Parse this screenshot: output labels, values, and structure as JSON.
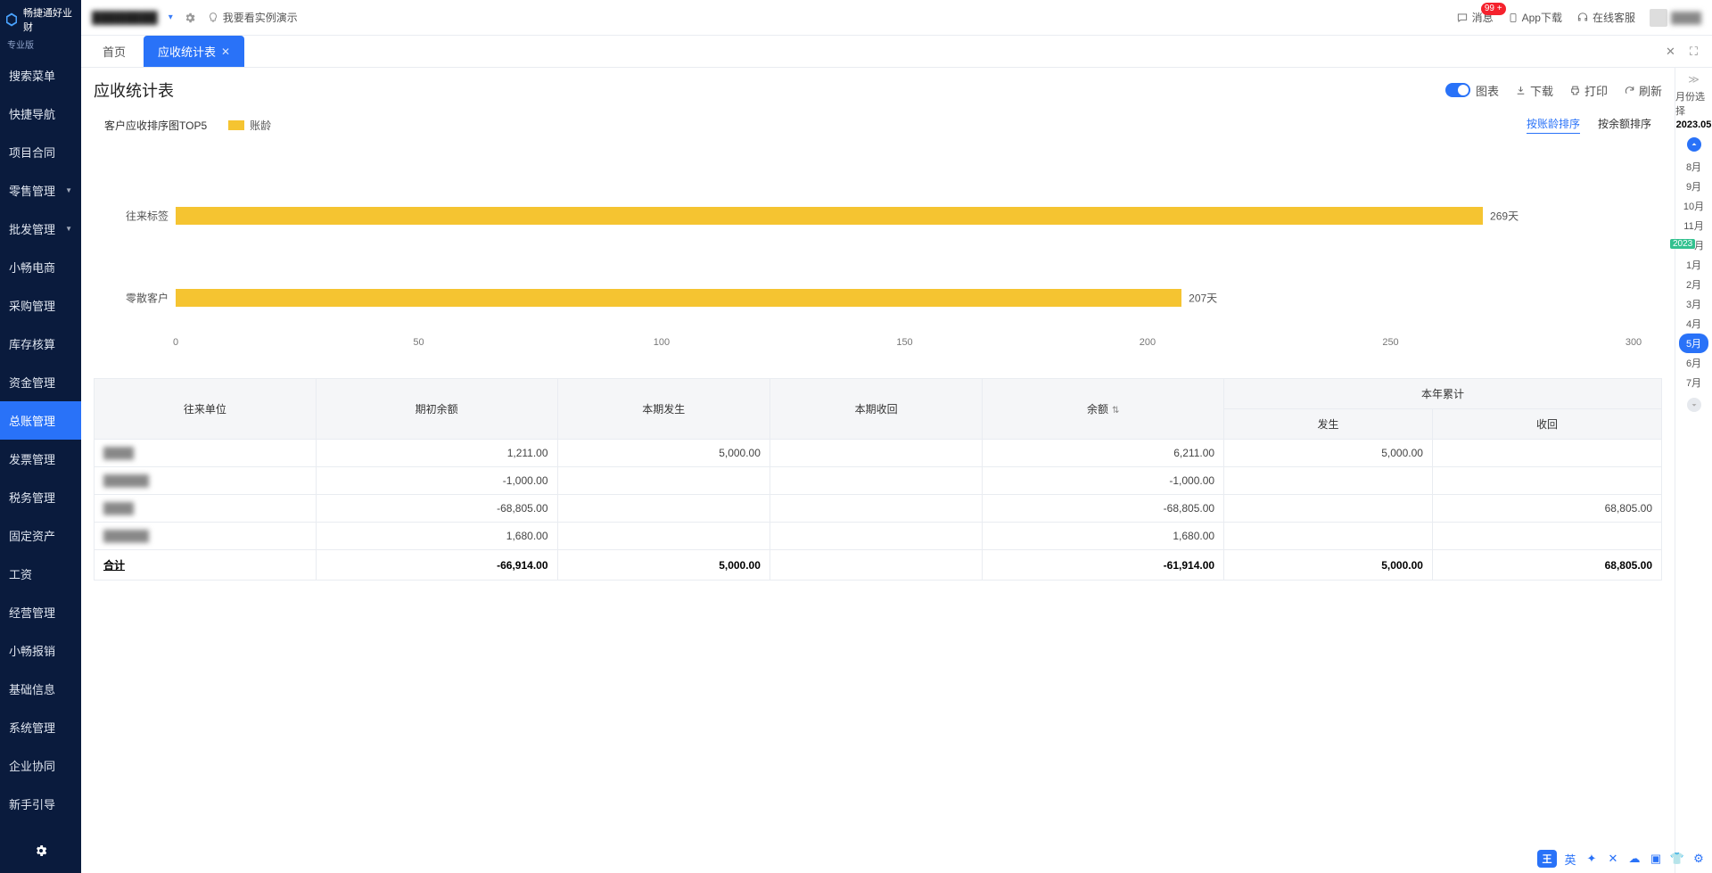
{
  "brand": {
    "name": "畅捷通好业财",
    "sub": "专业版"
  },
  "sidebar": {
    "items": [
      {
        "label": "搜索菜单",
        "caret": false
      },
      {
        "label": "快捷导航",
        "caret": false
      },
      {
        "label": "项目合同",
        "caret": false
      },
      {
        "label": "零售管理",
        "caret": true
      },
      {
        "label": "批发管理",
        "caret": true
      },
      {
        "label": "小畅电商",
        "caret": false
      },
      {
        "label": "采购管理",
        "caret": false
      },
      {
        "label": "库存核算",
        "caret": false
      },
      {
        "label": "资金管理",
        "caret": false
      },
      {
        "label": "总账管理",
        "caret": false,
        "active": true
      },
      {
        "label": "发票管理",
        "caret": false
      },
      {
        "label": "税务管理",
        "caret": false
      },
      {
        "label": "固定资产",
        "caret": false
      },
      {
        "label": "工资",
        "caret": false
      },
      {
        "label": "经营管理",
        "caret": false
      },
      {
        "label": "小畅报销",
        "caret": false
      },
      {
        "label": "基础信息",
        "caret": false
      },
      {
        "label": "系统管理",
        "caret": false
      },
      {
        "label": "企业协同",
        "caret": false
      },
      {
        "label": "新手引导",
        "caret": false
      }
    ]
  },
  "topbar": {
    "org": "████████",
    "demo": "我要看实例演示",
    "msg_label": "消息",
    "msg_badge": "99 +",
    "app_label": "App下载",
    "service_label": "在线客服",
    "user": "████"
  },
  "tabs": {
    "home": "首页",
    "active": "应收统计表"
  },
  "page": {
    "title": "应收统计表",
    "chart_toggle_label": "图表",
    "download": "下载",
    "print": "打印",
    "refresh": "刷新"
  },
  "chart": {
    "title": "客户应收排序图TOP5",
    "legend": "账龄",
    "sort_by_aging": "按账龄排序",
    "sort_by_balance": "按余额排序",
    "sort_active": "aging",
    "type": "horizontal-bar",
    "bar_color": "#f5c431",
    "background": "#ffffff",
    "x_axis": {
      "min": 0,
      "max": 300,
      "step": 50
    },
    "bars": [
      {
        "label": "往来标签",
        "value": 269,
        "value_label": "269天"
      },
      {
        "label": "零散客户",
        "value": 207,
        "value_label": "207天"
      }
    ]
  },
  "table": {
    "headers": {
      "partner": "往来单位",
      "begin_balance": "期初余额",
      "current_occur": "本期发生",
      "current_receive": "本期收回",
      "balance": "余额",
      "ytd": "本年累计",
      "ytd_occur": "发生",
      "ytd_receive": "收回"
    },
    "rows": [
      {
        "name": "████",
        "begin": "1,211.00",
        "occur": "5,000.00",
        "recv": "",
        "bal": "6,211.00",
        "y_occur": "5,000.00",
        "y_recv": ""
      },
      {
        "name": "██████",
        "begin": "-1,000.00",
        "occur": "",
        "recv": "",
        "bal": "-1,000.00",
        "y_occur": "",
        "y_recv": ""
      },
      {
        "name": "████",
        "begin": "-68,805.00",
        "occur": "",
        "recv": "",
        "bal": "-68,805.00",
        "y_occur": "",
        "y_recv": "68,805.00"
      },
      {
        "name": "██████",
        "begin": "1,680.00",
        "occur": "",
        "recv": "",
        "bal": "1,680.00",
        "y_occur": "",
        "y_recv": ""
      }
    ],
    "total": {
      "label": "合计",
      "begin": "-66,914.00",
      "occur": "5,000.00",
      "recv": "",
      "bal": "-61,914.00",
      "y_occur": "5,000.00",
      "y_recv": "68,805.00"
    }
  },
  "month_panel": {
    "title": "月份选择",
    "current": "2023.05",
    "year_tag": "2023",
    "year_tag_after_index": 4,
    "items": [
      "8月",
      "9月",
      "10月",
      "11月",
      "12月",
      "1月",
      "2月",
      "3月",
      "4月",
      "5月",
      "6月",
      "7月"
    ],
    "selected_index": 9
  },
  "tray": {
    "main": "王",
    "items": [
      "英",
      "✦",
      "✕",
      "☁",
      "▣",
      "👕",
      "⚙"
    ]
  }
}
